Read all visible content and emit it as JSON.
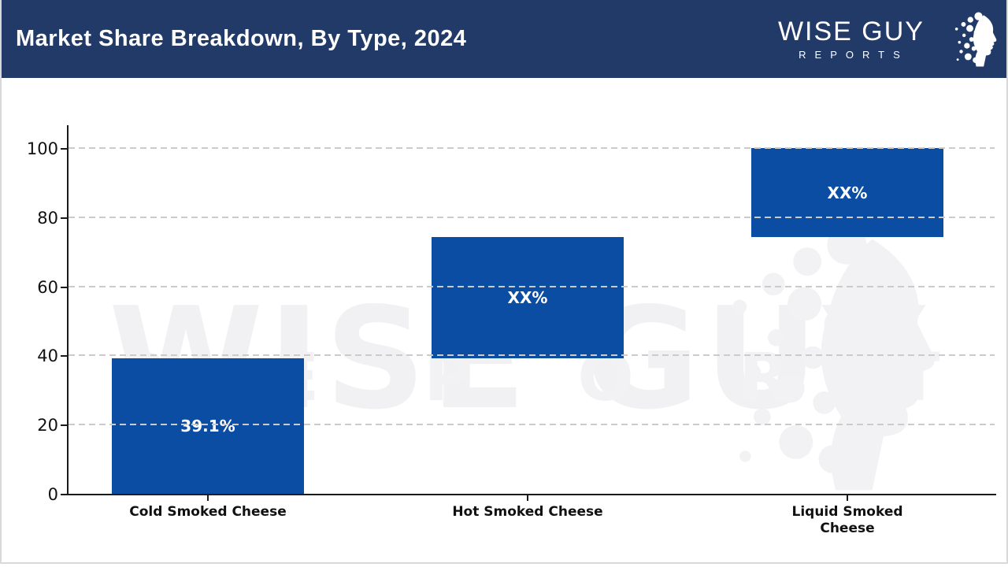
{
  "header": {
    "title": "Market Share Breakdown, By Type, 2024",
    "logo": {
      "name": "WISE GUY",
      "sub": "REPORTS"
    }
  },
  "watermark": {
    "name": "WISE GUY",
    "sub": "REPORTS"
  },
  "chart_data": {
    "type": "bar",
    "subtype": "floating-segment waterfall (cumulative market share breakdown)",
    "title": "Market Share Breakdown, By Type, 2024",
    "categories": [
      "Cold Smoked Cheese",
      "Hot Smoked Cheese",
      "Liquid Smoked Cheese"
    ],
    "bars": [
      {
        "category": "Cold Smoked Cheese",
        "from": 0,
        "to": 39.1,
        "label": "39.1%"
      },
      {
        "category": "Hot Smoked Cheese",
        "from": 39.1,
        "to": 74.2,
        "label": "XX%"
      },
      {
        "category": "Liquid Smoked Cheese",
        "from": 74.2,
        "to": 100,
        "label": "XX%"
      }
    ],
    "ylim": [
      0,
      100
    ],
    "yticks": [
      0,
      20,
      40,
      60,
      80,
      100
    ],
    "xlabel": "",
    "ylabel": "",
    "legend": "none",
    "grid": "horizontal dashed gridlines drawn over bars",
    "bar_color": "#0b4da2",
    "bar_label_color": "#ffffff"
  },
  "colors": {
    "header_bg": "#213a68",
    "bar": "#0b4da2",
    "grid": "#cbcbcb",
    "axis": "#1a1a1a",
    "watermark": "#f1f1f3",
    "frame_border": "#d9d9d9"
  }
}
